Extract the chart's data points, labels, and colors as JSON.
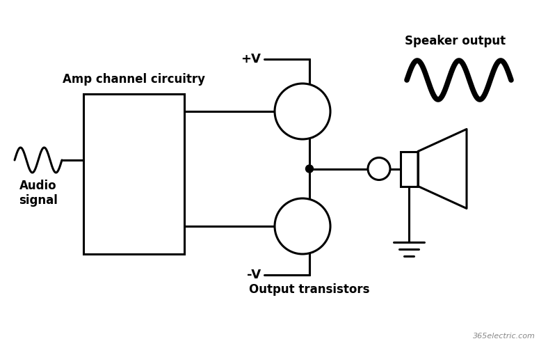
{
  "bg_color": "#ffffff",
  "line_color": "#000000",
  "line_width": 2.2,
  "text_color": "#000000",
  "title_text": "365electric.com",
  "labels": {
    "amp_channel": "Amp channel circuitry",
    "audio_signal": "Audio\nsignal",
    "output_transistors": "Output transistors",
    "speaker_output": "Speaker output",
    "plus_v": "+V",
    "minus_v": "-V"
  },
  "font_size_main": 12,
  "font_size_small": 9
}
